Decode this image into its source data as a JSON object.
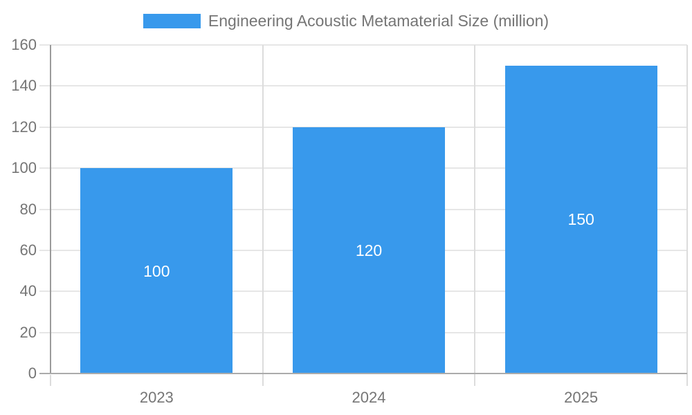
{
  "chart_data": {
    "type": "bar",
    "title": "Engineering Acoustic Metamaterial Size (million)",
    "legend": "Engineering Acoustic Metamaterial Size (million)",
    "legend_position": "top",
    "categories": [
      "2023",
      "2024",
      "2025"
    ],
    "series": [
      {
        "name": "Engineering Acoustic Metamaterial Size (million)",
        "values": [
          100,
          120,
          150
        ]
      }
    ],
    "data_labels": [
      "100",
      "120",
      "150"
    ],
    "xlabel": "",
    "ylabel": "",
    "ylim": [
      0,
      160
    ],
    "ytick_step": 20,
    "yticks": [
      0,
      20,
      40,
      60,
      80,
      100,
      120,
      140,
      160
    ],
    "grid": true
  },
  "colors": {
    "bar": "#3899ec",
    "axis_text": "#757575",
    "legend_text": "#757575",
    "data_label_text": "#ffffff",
    "gridline": "#e6e6e6",
    "boundary_line": "#dcdcdc",
    "y_axis_line": "#9a9a9a",
    "baseline": "#ababab",
    "background": "#ffffff"
  }
}
